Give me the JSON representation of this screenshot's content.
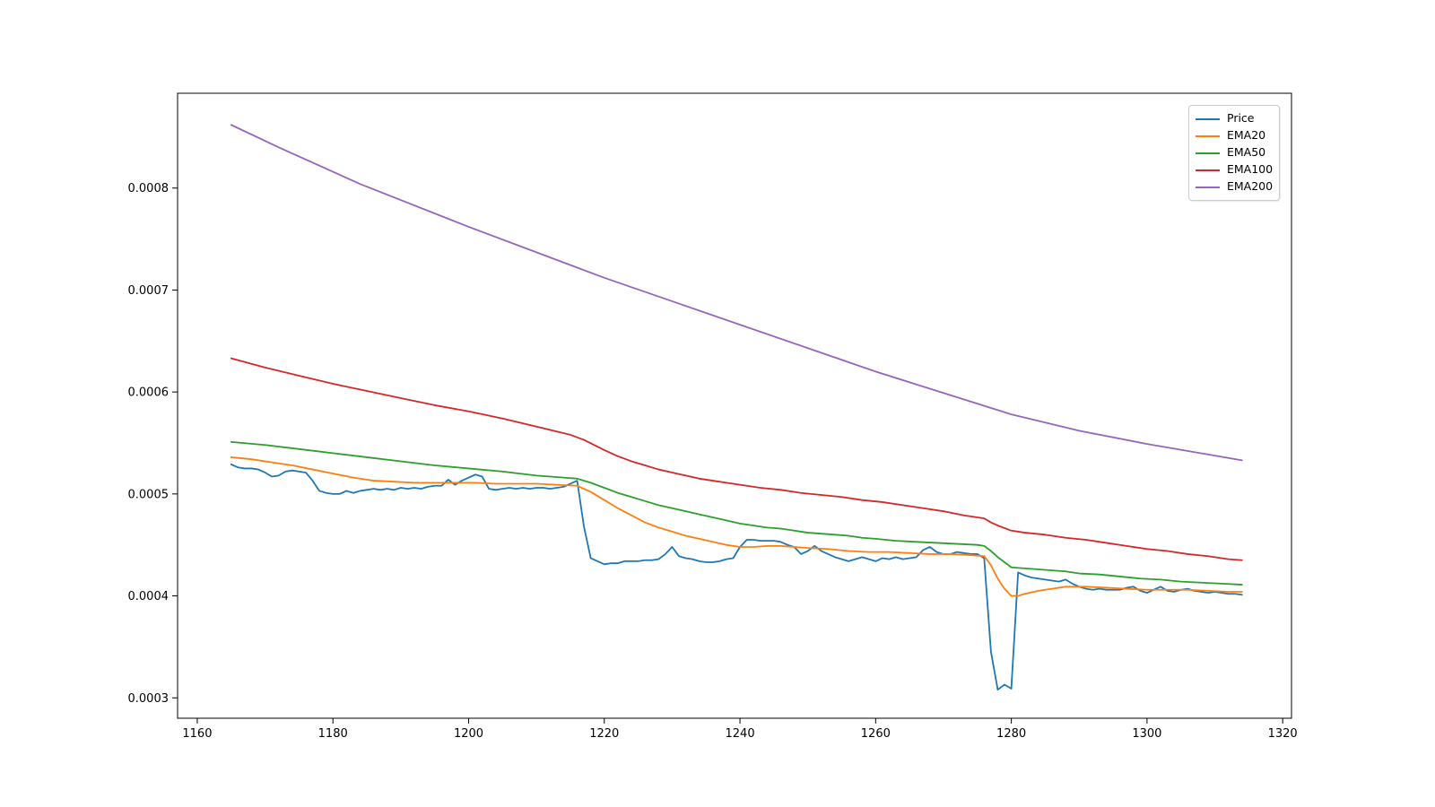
{
  "chart_data": {
    "type": "line",
    "title": "",
    "xlabel": "",
    "ylabel": "",
    "grid": false,
    "background": "#ffffff",
    "axes_color": "#000000",
    "xlim": [
      1157.1,
      1321.3
    ],
    "ylim": [
      0.00028,
      0.000893
    ],
    "x_ticks": [
      1160,
      1180,
      1200,
      1220,
      1240,
      1260,
      1280,
      1300,
      1320
    ],
    "y_ticks": [
      0.0003,
      0.0004,
      0.0005,
      0.0006,
      0.0007,
      0.0008
    ],
    "legend": {
      "position": "upper right",
      "items": [
        "Price",
        "EMA20",
        "EMA50",
        "EMA100",
        "EMA200"
      ]
    },
    "series": [
      {
        "name": "Price",
        "color": "#1f77b4",
        "x_start": 1165,
        "x_step": 1,
        "values": [
          0.000529,
          0.000526,
          0.000525,
          0.000525,
          0.000524,
          0.000521,
          0.000517,
          0.000518,
          0.000522,
          0.000523,
          0.000522,
          0.000521,
          0.000513,
          0.000503,
          0.000501,
          0.0005,
          0.0005,
          0.000503,
          0.000501,
          0.000503,
          0.000504,
          0.000505,
          0.000504,
          0.000505,
          0.000504,
          0.000506,
          0.000505,
          0.000506,
          0.000505,
          0.000507,
          0.000508,
          0.000508,
          0.000514,
          0.000509,
          0.000513,
          0.000516,
          0.000519,
          0.000517,
          0.000505,
          0.000504,
          0.000505,
          0.000506,
          0.000505,
          0.000506,
          0.000505,
          0.000506,
          0.000506,
          0.000505,
          0.000506,
          0.000507,
          0.00051,
          0.000513,
          0.000468,
          0.000437,
          0.000434,
          0.000431,
          0.000432,
          0.000432,
          0.000434,
          0.000434,
          0.000434,
          0.000435,
          0.000435,
          0.000436,
          0.000441,
          0.000448,
          0.000439,
          0.000437,
          0.000436,
          0.000434,
          0.000433,
          0.000433,
          0.000434,
          0.000436,
          0.000437,
          0.000448,
          0.000455,
          0.000455,
          0.000454,
          0.000454,
          0.000454,
          0.000453,
          0.00045,
          0.000448,
          0.000441,
          0.000444,
          0.000449,
          0.000444,
          0.000441,
          0.000438,
          0.000436,
          0.000434,
          0.000436,
          0.000438,
          0.000436,
          0.000434,
          0.000437,
          0.000436,
          0.000438,
          0.000436,
          0.000437,
          0.000438,
          0.000445,
          0.000448,
          0.000443,
          0.000441,
          0.000441,
          0.000443,
          0.000442,
          0.000441,
          0.000441,
          0.000437,
          0.000345,
          0.000308,
          0.000313,
          0.000309,
          0.000423,
          0.00042,
          0.000418,
          0.000417,
          0.000416,
          0.000415,
          0.000414,
          0.000416,
          0.000412,
          0.000409,
          0.000407,
          0.000406,
          0.000407,
          0.000406,
          0.000406,
          0.000406,
          0.000408,
          0.000409,
          0.000405,
          0.000403,
          0.000406,
          0.000409,
          0.000405,
          0.000404,
          0.000406,
          0.000407,
          0.000405,
          0.000404,
          0.000403,
          0.000404,
          0.000403,
          0.000402,
          0.000402,
          0.000401
        ]
      },
      {
        "name": "EMA20",
        "color": "#ff7f0e",
        "points": [
          [
            1165,
            0.000536
          ],
          [
            1168,
            0.000534
          ],
          [
            1171,
            0.000531
          ],
          [
            1174,
            0.000528
          ],
          [
            1177,
            0.000524
          ],
          [
            1180,
            0.00052
          ],
          [
            1183,
            0.000516
          ],
          [
            1186,
            0.000513
          ],
          [
            1189,
            0.000512
          ],
          [
            1192,
            0.000511
          ],
          [
            1195,
            0.000511
          ],
          [
            1198,
            0.000511
          ],
          [
            1201,
            0.000511
          ],
          [
            1204,
            0.00051
          ],
          [
            1207,
            0.00051
          ],
          [
            1210,
            0.00051
          ],
          [
            1213,
            0.000509
          ],
          [
            1216,
            0.000508
          ],
          [
            1218,
            0.000502
          ],
          [
            1220,
            0.000494
          ],
          [
            1222,
            0.000486
          ],
          [
            1224,
            0.000479
          ],
          [
            1226,
            0.000472
          ],
          [
            1228,
            0.000467
          ],
          [
            1230,
            0.000463
          ],
          [
            1232,
            0.000459
          ],
          [
            1234,
            0.000456
          ],
          [
            1236,
            0.000453
          ],
          [
            1238,
            0.00045
          ],
          [
            1240,
            0.000448
          ],
          [
            1242,
            0.000448
          ],
          [
            1244,
            0.000449
          ],
          [
            1246,
            0.000449
          ],
          [
            1248,
            0.000448
          ],
          [
            1250,
            0.000447
          ],
          [
            1253,
            0.000446
          ],
          [
            1256,
            0.000444
          ],
          [
            1259,
            0.000443
          ],
          [
            1262,
            0.000443
          ],
          [
            1265,
            0.000442
          ],
          [
            1268,
            0.000441
          ],
          [
            1271,
            0.000441
          ],
          [
            1274,
            0.00044
          ],
          [
            1276,
            0.000439
          ],
          [
            1277,
            0.00043
          ],
          [
            1278,
            0.000417
          ],
          [
            1279,
            0.000407
          ],
          [
            1280,
            0.0004
          ],
          [
            1281,
            0.0004
          ],
          [
            1282,
            0.000402
          ],
          [
            1284,
            0.000405
          ],
          [
            1286,
            0.000407
          ],
          [
            1288,
            0.000409
          ],
          [
            1291,
            0.000409
          ],
          [
            1294,
            0.000408
          ],
          [
            1297,
            0.000407
          ],
          [
            1300,
            0.000406
          ],
          [
            1303,
            0.000406
          ],
          [
            1306,
            0.000406
          ],
          [
            1309,
            0.000405
          ],
          [
            1312,
            0.000404
          ],
          [
            1314,
            0.000404
          ]
        ]
      },
      {
        "name": "EMA50",
        "color": "#2ca02c",
        "points": [
          [
            1165,
            0.000551
          ],
          [
            1170,
            0.000548
          ],
          [
            1175,
            0.000544
          ],
          [
            1180,
            0.00054
          ],
          [
            1185,
            0.000536
          ],
          [
            1190,
            0.000532
          ],
          [
            1195,
            0.000528
          ],
          [
            1200,
            0.000525
          ],
          [
            1205,
            0.000522
          ],
          [
            1210,
            0.000518
          ],
          [
            1214,
            0.000516
          ],
          [
            1216,
            0.000515
          ],
          [
            1218,
            0.000511
          ],
          [
            1220,
            0.000506
          ],
          [
            1222,
            0.000501
          ],
          [
            1224,
            0.000497
          ],
          [
            1226,
            0.000493
          ],
          [
            1228,
            0.000489
          ],
          [
            1230,
            0.000486
          ],
          [
            1232,
            0.000483
          ],
          [
            1234,
            0.00048
          ],
          [
            1236,
            0.000477
          ],
          [
            1238,
            0.000474
          ],
          [
            1240,
            0.000471
          ],
          [
            1242,
            0.000469
          ],
          [
            1244,
            0.000467
          ],
          [
            1246,
            0.000466
          ],
          [
            1248,
            0.000464
          ],
          [
            1250,
            0.000462
          ],
          [
            1252,
            0.000461
          ],
          [
            1254,
            0.00046
          ],
          [
            1256,
            0.000459
          ],
          [
            1258,
            0.000457
          ],
          [
            1260,
            0.000456
          ],
          [
            1263,
            0.000454
          ],
          [
            1266,
            0.000453
          ],
          [
            1269,
            0.000452
          ],
          [
            1272,
            0.000451
          ],
          [
            1275,
            0.00045
          ],
          [
            1276,
            0.000449
          ],
          [
            1277,
            0.000444
          ],
          [
            1278,
            0.000438
          ],
          [
            1279,
            0.000433
          ],
          [
            1280,
            0.000428
          ],
          [
            1282,
            0.000427
          ],
          [
            1284,
            0.000426
          ],
          [
            1286,
            0.000425
          ],
          [
            1288,
            0.000424
          ],
          [
            1290,
            0.000422
          ],
          [
            1293,
            0.000421
          ],
          [
            1296,
            0.000419
          ],
          [
            1299,
            0.000417
          ],
          [
            1302,
            0.000416
          ],
          [
            1305,
            0.000414
          ],
          [
            1308,
            0.000413
          ],
          [
            1311,
            0.000412
          ],
          [
            1314,
            0.000411
          ]
        ]
      },
      {
        "name": "EMA100",
        "color": "#d62728",
        "points": [
          [
            1165,
            0.000633
          ],
          [
            1170,
            0.000624
          ],
          [
            1175,
            0.000616
          ],
          [
            1180,
            0.000608
          ],
          [
            1185,
            0.000601
          ],
          [
            1190,
            0.000594
          ],
          [
            1195,
            0.000587
          ],
          [
            1200,
            0.000581
          ],
          [
            1205,
            0.000574
          ],
          [
            1210,
            0.000566
          ],
          [
            1215,
            0.000558
          ],
          [
            1217,
            0.000553
          ],
          [
            1220,
            0.000543
          ],
          [
            1222,
            0.000537
          ],
          [
            1224,
            0.000532
          ],
          [
            1226,
            0.000528
          ],
          [
            1228,
            0.000524
          ],
          [
            1230,
            0.000521
          ],
          [
            1232,
            0.000518
          ],
          [
            1234,
            0.000515
          ],
          [
            1236,
            0.000513
          ],
          [
            1238,
            0.000511
          ],
          [
            1240,
            0.000509
          ],
          [
            1243,
            0.000506
          ],
          [
            1246,
            0.000504
          ],
          [
            1249,
            0.000501
          ],
          [
            1252,
            0.000499
          ],
          [
            1255,
            0.000497
          ],
          [
            1258,
            0.000494
          ],
          [
            1261,
            0.000492
          ],
          [
            1264,
            0.000489
          ],
          [
            1267,
            0.000486
          ],
          [
            1270,
            0.000483
          ],
          [
            1273,
            0.000479
          ],
          [
            1276,
            0.000476
          ],
          [
            1277,
            0.000472
          ],
          [
            1278,
            0.000469
          ],
          [
            1280,
            0.000464
          ],
          [
            1282,
            0.000462
          ],
          [
            1285,
            0.00046
          ],
          [
            1288,
            0.000457
          ],
          [
            1291,
            0.000455
          ],
          [
            1294,
            0.000452
          ],
          [
            1297,
            0.000449
          ],
          [
            1300,
            0.000446
          ],
          [
            1303,
            0.000444
          ],
          [
            1306,
            0.000441
          ],
          [
            1309,
            0.000439
          ],
          [
            1312,
            0.000436
          ],
          [
            1314,
            0.000435
          ]
        ]
      },
      {
        "name": "EMA200",
        "color": "#9467bd",
        "points": [
          [
            1165,
            0.000862
          ],
          [
            1172,
            0.00084
          ],
          [
            1184,
            0.000804
          ],
          [
            1200,
            0.000762
          ],
          [
            1210,
            0.000737
          ],
          [
            1220,
            0.000712
          ],
          [
            1230,
            0.000689
          ],
          [
            1240,
            0.000666
          ],
          [
            1250,
            0.000643
          ],
          [
            1260,
            0.00062
          ],
          [
            1270,
            0.000599
          ],
          [
            1280,
            0.000578
          ],
          [
            1290,
            0.000562
          ],
          [
            1300,
            0.000549
          ],
          [
            1307,
            0.000541
          ],
          [
            1314,
            0.000533
          ]
        ]
      }
    ]
  }
}
